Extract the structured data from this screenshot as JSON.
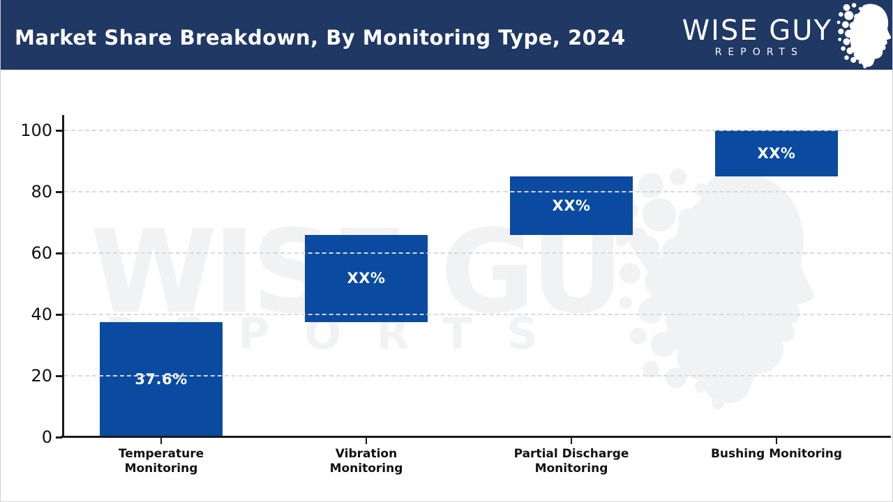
{
  "header": {
    "title": "Market Share Breakdown, By Monitoring Type, 2024",
    "logo_line1": "WISE GUY",
    "logo_line2": "REPORTS"
  },
  "watermark": {
    "line1": "WISE GUY",
    "line2": "REPORTS"
  },
  "colors": {
    "header_bg": "#1f3864",
    "bar_blue": "#0a4aa0",
    "grid_gray": "#d9d9d9",
    "watermark_gray": "#f1f2f4",
    "axis_black": "#1a1a1a"
  },
  "chart_data": {
    "type": "bar",
    "variant": "floating-segment-columns",
    "title": "Market Share Breakdown, By Monitoring Type, 2024",
    "xlabel": "",
    "ylabel": "",
    "ylim": [
      0,
      105
    ],
    "yticks": [
      0,
      20,
      40,
      60,
      80,
      100
    ],
    "grid": "horizontal-dashed",
    "legend_position": "none",
    "bar_color": "#0a4aa0",
    "categories": [
      {
        "name": "Temperature Monitoring",
        "lines": [
          "Temperature",
          "Monitoring"
        ]
      },
      {
        "name": "Vibration Monitoring",
        "lines": [
          "Vibration",
          "Monitoring"
        ]
      },
      {
        "name": "Partial Discharge Monitoring",
        "lines": [
          "Partial Discharge",
          "Monitoring"
        ]
      },
      {
        "name": "Bushing Monitoring",
        "lines": [
          "Bushing Monitoring"
        ]
      }
    ],
    "bars": [
      {
        "category": "Temperature Monitoring",
        "start": 0,
        "end": 37.6,
        "label": "37.6%"
      },
      {
        "category": "Vibration Monitoring",
        "start": 37.6,
        "end": 66,
        "label": "XX%"
      },
      {
        "category": "Partial Discharge Monitoring",
        "start": 66,
        "end": 85,
        "label": "XX%"
      },
      {
        "category": "Bushing Monitoring",
        "start": 85,
        "end": 100,
        "label": "XX%"
      }
    ]
  }
}
